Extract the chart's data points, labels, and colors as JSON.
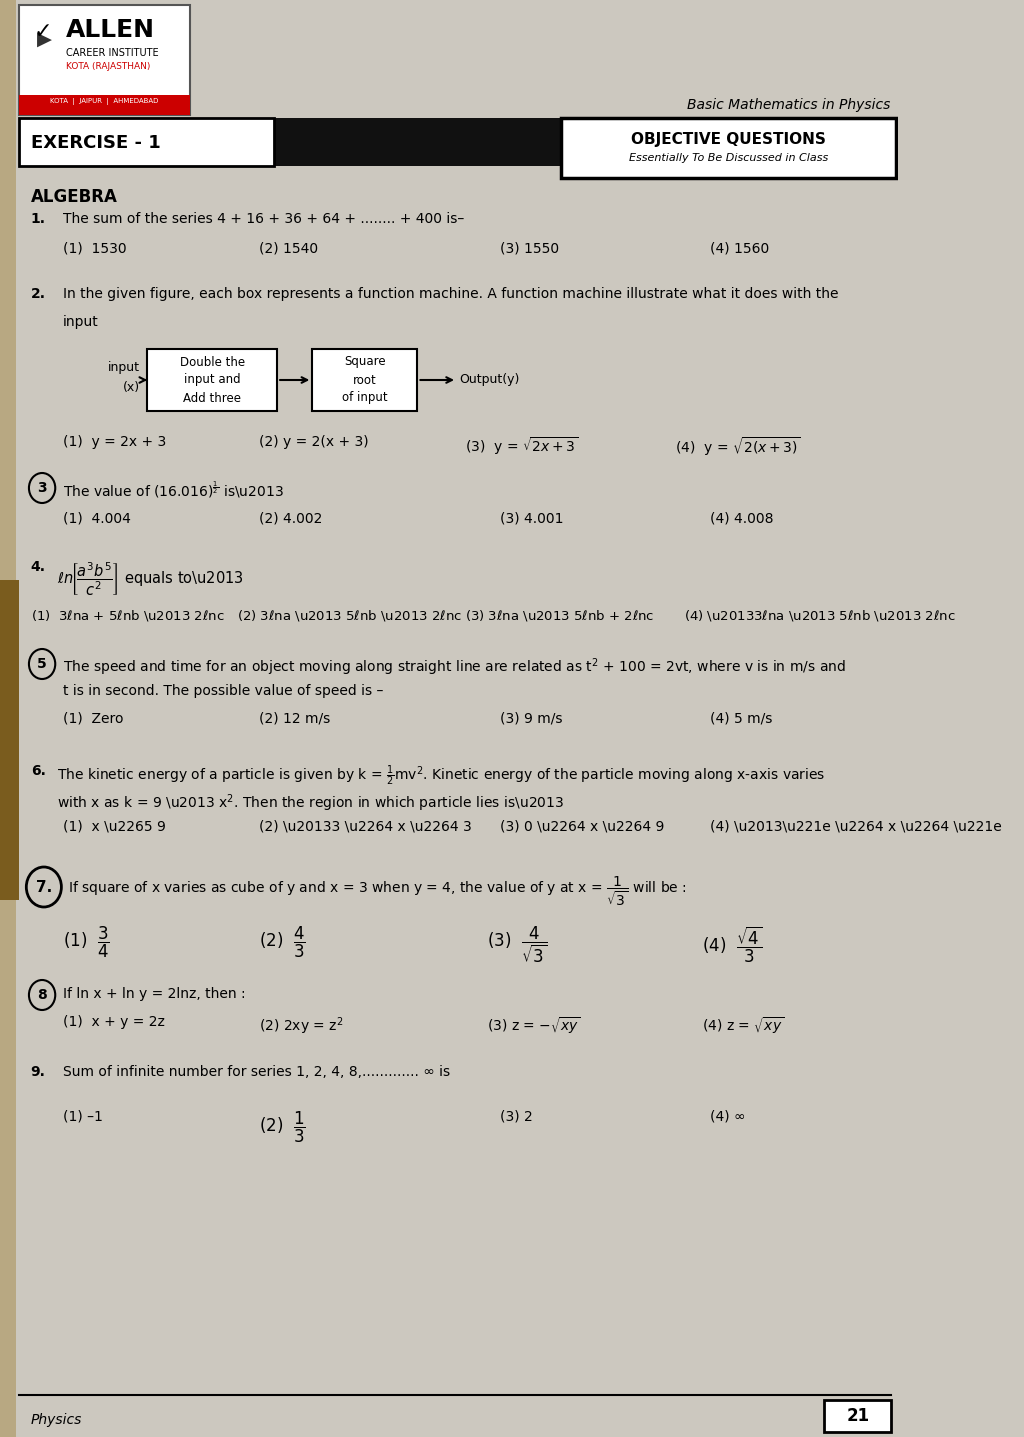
{
  "title_right": "Basic Mathematics in Physics",
  "exercise_label": "EXERCISE - 1",
  "objective_label": "OBJECTIVE QUESTIONS",
  "objective_sublabel": "Essentially To Be Discussed in Class",
  "section_label": "ALGEBRA",
  "bg_color": "#ccc8bf",
  "page_number": "21",
  "bottom_text": "Physics"
}
